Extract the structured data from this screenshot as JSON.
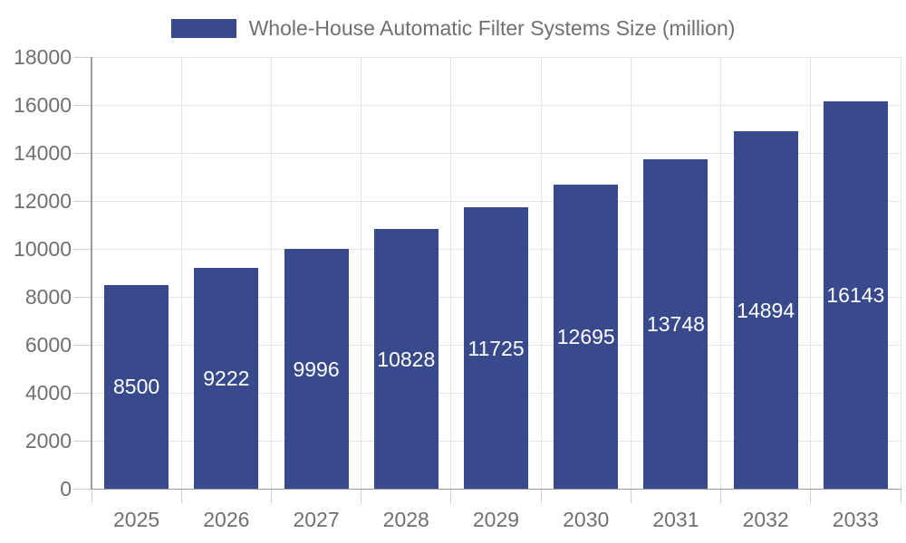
{
  "chart_data": {
    "type": "bar",
    "title": "Whole-House Automatic Filter Systems Size (million)",
    "categories": [
      "2025",
      "2026",
      "2027",
      "2028",
      "2029",
      "2030",
      "2031",
      "2032",
      "2033"
    ],
    "values": [
      8500,
      9222,
      9996,
      10828,
      11725,
      12695,
      13748,
      14894,
      16143
    ],
    "xlabel": "",
    "ylabel": "",
    "ylim": [
      0,
      18000
    ],
    "ytick_step": 2000,
    "yticks": [
      0,
      2000,
      4000,
      6000,
      8000,
      10000,
      12000,
      14000,
      16000,
      18000
    ],
    "legend_position": "top",
    "grid": true,
    "value_labels": "inside-middle",
    "colors": {
      "bar": "#38498c",
      "grid": "#e4e4e9",
      "axis": "#9b9b9b",
      "tick": "#cfcfcf",
      "label_text": "#707070",
      "value_text": "#ffffff",
      "background": "#ffffff"
    }
  }
}
